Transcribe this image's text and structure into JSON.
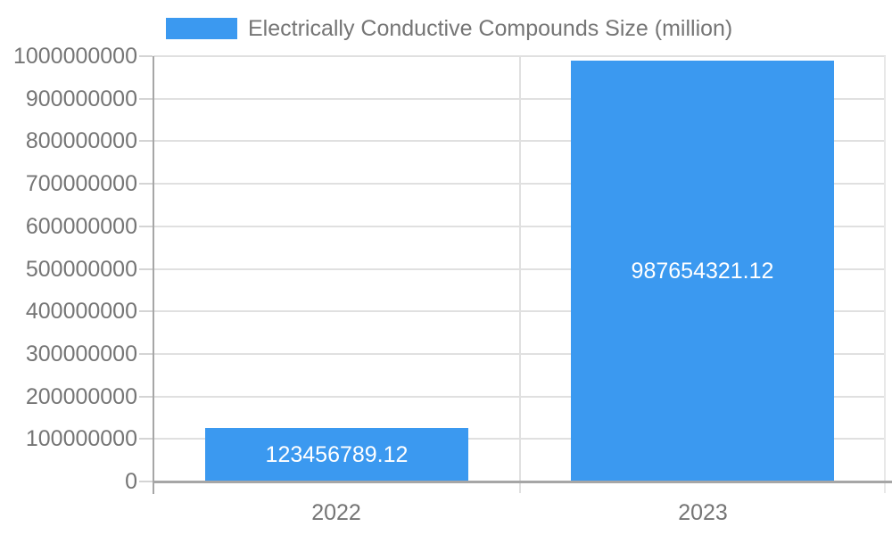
{
  "chart_data": {
    "type": "bar",
    "title": "Electrically Conductive Compounds Size (million)",
    "categories": [
      "2022",
      "2023"
    ],
    "series": [
      {
        "name": "Electrically Conductive Compounds Size (million)",
        "values": [
          123456789.12,
          987654321.12
        ]
      }
    ],
    "bar_value_labels": [
      "123456789.12",
      "987654321.12"
    ],
    "y_tick_labels": [
      "0",
      "100000000",
      "200000000",
      "300000000",
      "400000000",
      "500000000",
      "600000000",
      "700000000",
      "800000000",
      "900000000",
      "1000000000"
    ],
    "ylim": [
      0,
      1000000000
    ],
    "y_tick_interval": 100000000,
    "xlabel": "",
    "ylabel": "",
    "grid": true,
    "legend_position": "top",
    "colors": {
      "bar": "#3b99f0",
      "axis_text": "#757575",
      "bar_label_text": "#ffffff",
      "gridline": "#e0e0e0",
      "gridline_right": "#e8e8e8",
      "tick": "#d4d4d4",
      "axis_line": "#a6a6a6",
      "background": "#ffffff"
    }
  }
}
